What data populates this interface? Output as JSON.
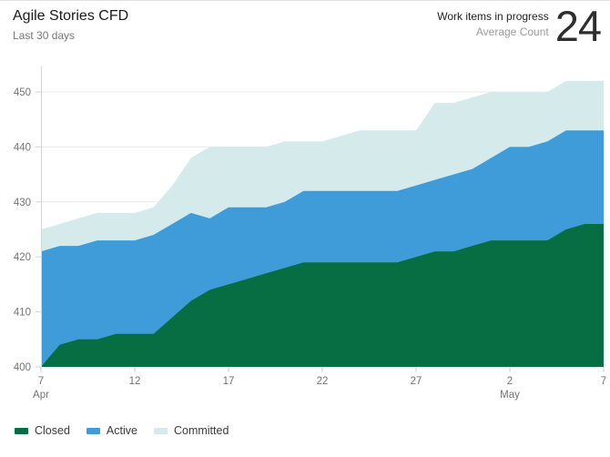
{
  "header": {
    "title": "Agile Stories CFD",
    "subtitle": "Last 30 days",
    "stat_label_line1": "Work items in progress",
    "stat_label_line2": "Average Count",
    "stat_value": "24"
  },
  "colors": {
    "closed": "#076d43",
    "active": "#3f9cd9",
    "committed": "#d4eaeb",
    "gridline": "#e9e9e9",
    "axis": "#d6d6d6",
    "tick_label": "#737373"
  },
  "chart_data": {
    "type": "area",
    "stacked": true,
    "title": "Agile Stories CFD",
    "x_range": {
      "start": "Apr 7",
      "end": "May 7",
      "points": 31
    },
    "ylim": [
      400,
      454
    ],
    "y_ticks": [
      400,
      410,
      420,
      430,
      440,
      450
    ],
    "x_ticks": [
      {
        "day": 0,
        "label": "7",
        "month": "Apr"
      },
      {
        "day": 5,
        "label": "12"
      },
      {
        "day": 10,
        "label": "17"
      },
      {
        "day": 15,
        "label": "22"
      },
      {
        "day": 20,
        "label": "27"
      },
      {
        "day": 25,
        "label": "2",
        "month": "May"
      },
      {
        "day": 30,
        "label": "7"
      }
    ],
    "grid": "horizontal-only",
    "legend_position": "bottom-left",
    "note": "Cumulative flow diagram; each series value is the stacked cumulative top boundary read from the y-axis",
    "series": [
      {
        "name": "Closed",
        "color": "#076d43",
        "cumulative_values": [
          400,
          404,
          405,
          405,
          406,
          406,
          406,
          409,
          412,
          414,
          415,
          416,
          417,
          418,
          419,
          419,
          419,
          419,
          419,
          419,
          420,
          421,
          421,
          422,
          423,
          423,
          423,
          423,
          425,
          426,
          426
        ]
      },
      {
        "name": "Active",
        "color": "#3f9cd9",
        "cumulative_values": [
          421,
          422,
          422,
          423,
          423,
          423,
          424,
          426,
          428,
          427,
          429,
          429,
          429,
          430,
          432,
          432,
          432,
          432,
          432,
          432,
          433,
          434,
          435,
          436,
          438,
          440,
          440,
          441,
          443,
          443,
          443
        ]
      },
      {
        "name": "Committed",
        "color": "#d4eaeb",
        "cumulative_values": [
          425,
          426,
          427,
          428,
          428,
          428,
          429,
          433,
          438,
          440,
          440,
          440,
          440,
          441,
          441,
          441,
          442,
          443,
          443,
          443,
          443,
          448,
          448,
          449,
          450,
          450,
          450,
          450,
          452,
          452,
          452
        ]
      }
    ]
  }
}
